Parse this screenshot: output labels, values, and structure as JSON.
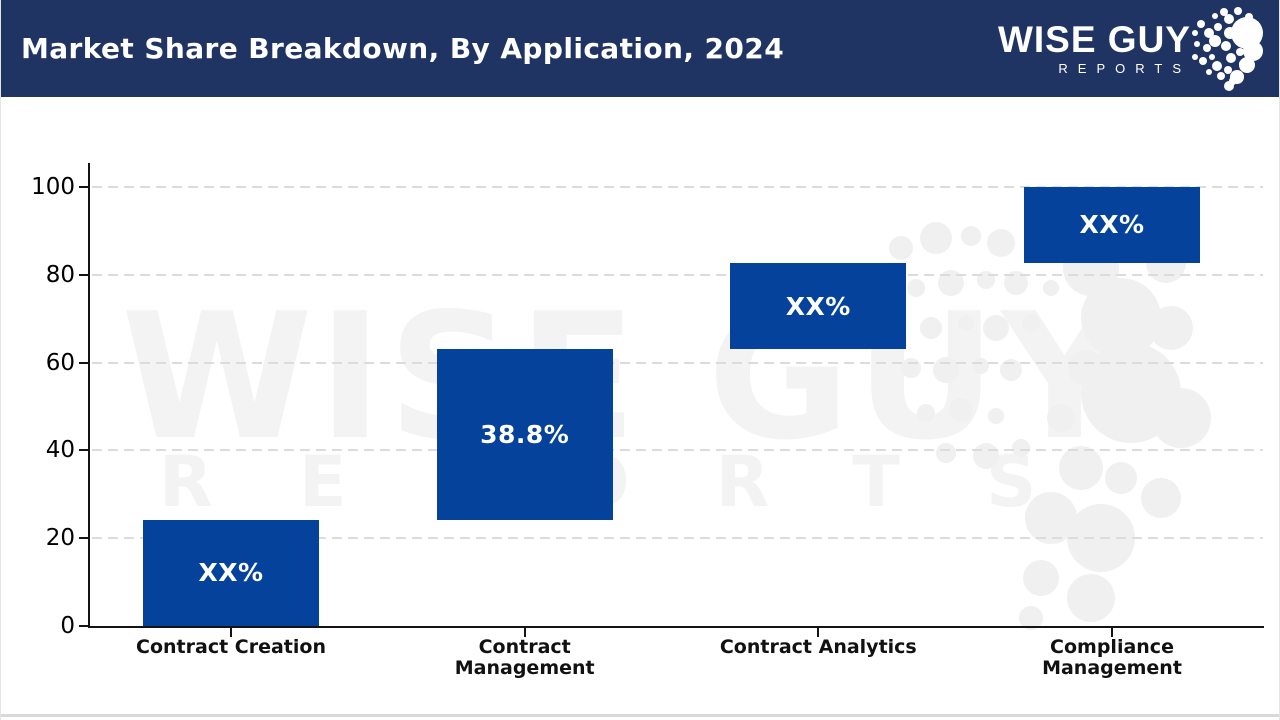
{
  "page": {
    "title": "Market Share Breakdown, By Application, 2024",
    "brand": {
      "name": "WISE GUY",
      "sub": "REPORTS"
    },
    "watermark": {
      "line1": "WISE GUY",
      "line2": "REPORTS"
    },
    "colors": {
      "header_bg": "#203464",
      "bar_blue": "#05429c",
      "gridline": "#dcdcdc",
      "axis": "#141414",
      "watermark": "#f3f3f3",
      "bar_label": "#ffffff",
      "footer_line": "#d9d9d9"
    }
  },
  "chart_data": {
    "type": "bar",
    "subtype": "floating-segment-waterfall",
    "title": "Market Share Breakdown, By Application, 2024",
    "xlabel": "",
    "ylabel": "",
    "categories": [
      "Contract Creation",
      "Contract Management",
      "Contract Analytics",
      "Compliance Management"
    ],
    "category_lines": [
      [
        "Contract Creation"
      ],
      [
        "Contract",
        "Management"
      ],
      [
        "Contract Analytics"
      ],
      [
        "Compliance",
        "Management"
      ]
    ],
    "series": [
      {
        "name": "Market Share (%)",
        "segments": [
          {
            "category": "Contract Creation",
            "start": 0,
            "end": 24.2,
            "label": "XX%"
          },
          {
            "category": "Contract Management",
            "start": 24.2,
            "end": 63.0,
            "label": "38.8%"
          },
          {
            "category": "Contract Analytics",
            "start": 63.0,
            "end": 82.7,
            "label": "XX%"
          },
          {
            "category": "Compliance Management",
            "start": 82.7,
            "end": 100,
            "label": "XX%"
          }
        ]
      }
    ],
    "y_ticks": [
      0,
      20,
      40,
      60,
      80,
      100
    ],
    "ylim": [
      0,
      105.5
    ],
    "grid": "dashed-horizontal",
    "legend": "none",
    "bar_color": "#05429c",
    "bar_label_color": "#ffffff"
  }
}
